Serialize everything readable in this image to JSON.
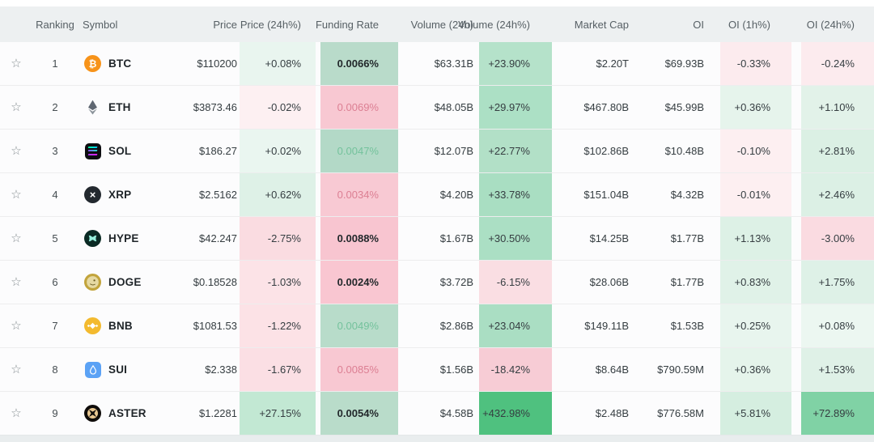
{
  "table": {
    "columns": [
      {
        "label": ""
      },
      {
        "label": "Ranking"
      },
      {
        "label": "Symbol"
      },
      {
        "label": "Price"
      },
      {
        "label": "Price (24h%)"
      },
      {
        "label": "Funding Rate"
      },
      {
        "label": "Volume (24h)"
      },
      {
        "label": "Volume (24h%)"
      },
      {
        "label": "Market Cap"
      },
      {
        "label": "OI"
      },
      {
        "label": "OI (1h%)"
      },
      {
        "label": "OI (24h%)"
      }
    ],
    "star_glyph": "☆",
    "rows": [
      {
        "rank": "1",
        "symbol": "BTC",
        "icon": "btc-icon",
        "price": "$110200",
        "price_24h": {
          "text": "+0.08%",
          "bg": "#e9f5ef"
        },
        "funding": {
          "text": "0.0066%",
          "bg": "#b9dbca",
          "style": "dark"
        },
        "volume": "$63.31B",
        "vol_24h": {
          "text": "+23.90%",
          "bg": "#b5e2ca"
        },
        "mcap": "$2.20T",
        "oi": "$69.93B",
        "oi_1h": {
          "text": "-0.33%",
          "bg": "#fcebee"
        },
        "oi_24h": {
          "text": "-0.24%",
          "bg": "#fcebee"
        }
      },
      {
        "rank": "2",
        "symbol": "ETH",
        "icon": "eth-icon",
        "price": "$3873.46",
        "price_24h": {
          "text": "-0.02%",
          "bg": "#fdf0f2"
        },
        "funding": {
          "text": "0.0069%",
          "bg": "#f8c8d2",
          "style": "rose"
        },
        "volume": "$48.05B",
        "vol_24h": {
          "text": "+29.97%",
          "bg": "#ace0c5"
        },
        "mcap": "$467.80B",
        "oi": "$45.99B",
        "oi_1h": {
          "text": "+0.36%",
          "bg": "#e6f4ec"
        },
        "oi_24h": {
          "text": "+1.10%",
          "bg": "#e2f2e9"
        }
      },
      {
        "rank": "3",
        "symbol": "SOL",
        "icon": "sol-icon",
        "price": "$186.27",
        "price_24h": {
          "text": "+0.02%",
          "bg": "#eaf6f0"
        },
        "funding": {
          "text": "0.0047%",
          "bg": "#b3d9c7",
          "style": "green"
        },
        "volume": "$12.07B",
        "vol_24h": {
          "text": "+22.77%",
          "bg": "#b2e0c7"
        },
        "mcap": "$102.86B",
        "oi": "$10.48B",
        "oi_1h": {
          "text": "-0.10%",
          "bg": "#fdeff1"
        },
        "oi_24h": {
          "text": "+2.81%",
          "bg": "#dbf0e4"
        }
      },
      {
        "rank": "4",
        "symbol": "XRP",
        "icon": "xrp-icon",
        "price": "$2.5162",
        "price_24h": {
          "text": "+0.62%",
          "bg": "#def1e7"
        },
        "funding": {
          "text": "0.0034%",
          "bg": "#f8c9d3",
          "style": "rose"
        },
        "volume": "$4.20B",
        "vol_24h": {
          "text": "+33.78%",
          "bg": "#a9dec2"
        },
        "mcap": "$151.04B",
        "oi": "$4.32B",
        "oi_1h": {
          "text": "-0.01%",
          "bg": "#fdeff1"
        },
        "oi_24h": {
          "text": "+2.46%",
          "bg": "#dcf0e5"
        }
      },
      {
        "rank": "5",
        "symbol": "HYPE",
        "icon": "hype-icon",
        "price": "$42.247",
        "price_24h": {
          "text": "-2.75%",
          "bg": "#fadce1"
        },
        "funding": {
          "text": "0.0088%",
          "bg": "#f8c5d0",
          "style": "dark"
        },
        "volume": "$1.67B",
        "vol_24h": {
          "text": "+30.50%",
          "bg": "#abdfc4"
        },
        "mcap": "$14.25B",
        "oi": "$1.77B",
        "oi_1h": {
          "text": "+1.13%",
          "bg": "#ddf1e6"
        },
        "oi_24h": {
          "text": "-3.00%",
          "bg": "#fadbe1"
        }
      },
      {
        "rank": "6",
        "symbol": "DOGE",
        "icon": "doge-icon",
        "price": "$0.18528",
        "price_24h": {
          "text": "-1.03%",
          "bg": "#fce3e7"
        },
        "funding": {
          "text": "0.0024%",
          "bg": "#f9c6d1",
          "style": "dark"
        },
        "volume": "$3.72B",
        "vol_24h": {
          "text": "-6.15%",
          "bg": "#fadee3"
        },
        "mcap": "$28.06B",
        "oi": "$1.77B",
        "oi_1h": {
          "text": "+0.83%",
          "bg": "#e0f2e8"
        },
        "oi_24h": {
          "text": "+1.75%",
          "bg": "#def1e7"
        }
      },
      {
        "rank": "7",
        "symbol": "BNB",
        "icon": "bnb-icon",
        "price": "$1081.53",
        "price_24h": {
          "text": "-1.22%",
          "bg": "#fce2e6"
        },
        "funding": {
          "text": "0.0049%",
          "bg": "#b8dcca",
          "style": "green"
        },
        "volume": "$2.86B",
        "vol_24h": {
          "text": "+23.04%",
          "bg": "#aadec3"
        },
        "mcap": "$149.11B",
        "oi": "$1.53B",
        "oi_1h": {
          "text": "+0.25%",
          "bg": "#e8f5ee"
        },
        "oi_24h": {
          "text": "+0.08%",
          "bg": "#ecf7f1"
        }
      },
      {
        "rank": "8",
        "symbol": "SUI",
        "icon": "sui-icon",
        "price": "$2.338",
        "price_24h": {
          "text": "-1.67%",
          "bg": "#fbdfe4"
        },
        "funding": {
          "text": "0.0085%",
          "bg": "#f8c8d2",
          "style": "rose"
        },
        "volume": "$1.56B",
        "vol_24h": {
          "text": "-18.42%",
          "bg": "#f7ccd5"
        },
        "mcap": "$8.64B",
        "oi": "$790.59M",
        "oi_1h": {
          "text": "+0.36%",
          "bg": "#e5f4eb"
        },
        "oi_24h": {
          "text": "+1.53%",
          "bg": "#dff1e7"
        }
      },
      {
        "rank": "9",
        "symbol": "ASTER",
        "icon": "aster-icon",
        "price": "$1.2281",
        "price_24h": {
          "text": "+27.15%",
          "bg": "#c2e8d3"
        },
        "funding": {
          "text": "0.0054%",
          "bg": "#b9dcca",
          "style": "dark"
        },
        "volume": "$4.58B",
        "vol_24h": {
          "text": "+432.98%",
          "bg": "#4fc17f"
        },
        "mcap": "$2.48B",
        "oi": "$776.58M",
        "oi_1h": {
          "text": "+5.81%",
          "bg": "#d5eee0"
        },
        "oi_24h": {
          "text": "+72.89%",
          "bg": "#80d2a5"
        }
      }
    ]
  },
  "colors": {
    "header_bg": "#edf0f1",
    "row_bg": "#fcfcfd",
    "positive_light": "#e4f3ea",
    "negative_light": "#fcebee",
    "positive_strong": "#4fc17f",
    "funding_green": "#b7d9c8",
    "funding_pink": "#f8c8d2"
  }
}
